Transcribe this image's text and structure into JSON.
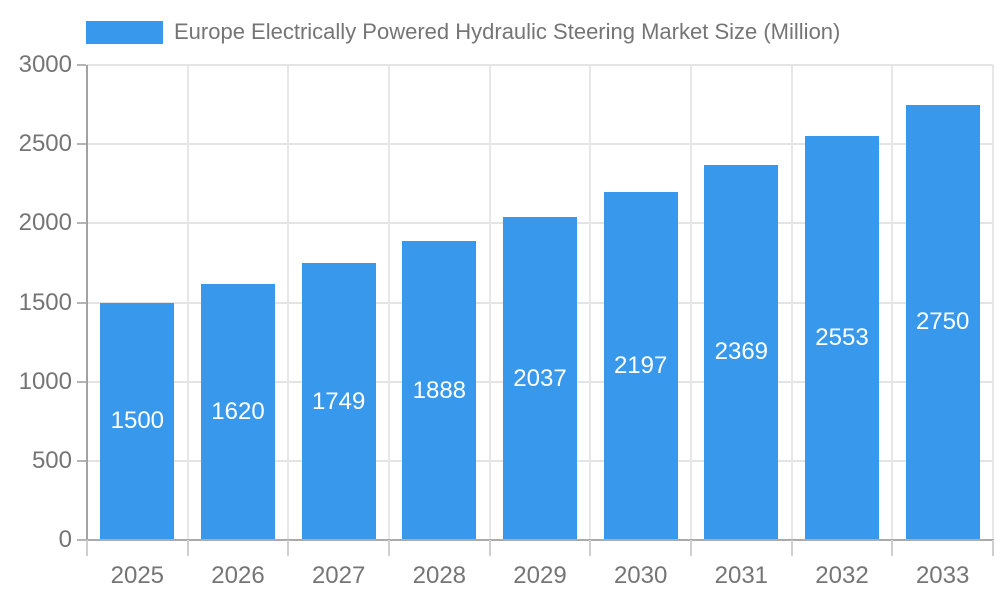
{
  "legend": {
    "label": "Europe Electrically Powered Hydraulic Steering Market Size (Million)"
  },
  "colors": {
    "bar": "#3899ec",
    "value_label": "#ffffff",
    "tick_text": "#757575"
  },
  "chart_data": {
    "type": "bar",
    "title": "Europe Electrically Powered Hydraulic Steering Market Size (Million)",
    "categories": [
      "2025",
      "2026",
      "2027",
      "2028",
      "2029",
      "2030",
      "2031",
      "2032",
      "2033"
    ],
    "values": [
      1500,
      1620,
      1749,
      1888,
      2037,
      2197,
      2369,
      2553,
      2750
    ],
    "series": [
      {
        "name": "Europe Electrically Powered Hydraulic Steering Market Size (Million)",
        "values": [
          1500,
          1620,
          1749,
          1888,
          2037,
          2197,
          2369,
          2553,
          2750
        ]
      }
    ],
    "xlabel": "",
    "ylabel": "",
    "ylim": [
      0,
      3000
    ],
    "y_ticks": [
      0,
      500,
      1000,
      1500,
      2000,
      2500,
      3000
    ],
    "grid": true,
    "legend_position": "top-left",
    "value_labels": "inside-center"
  }
}
